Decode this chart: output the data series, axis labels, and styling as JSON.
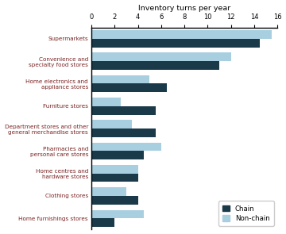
{
  "categories": [
    "Supermarkets",
    "Convenience and\nspecialty food stores",
    "Home electronics and\nappliance stores",
    "Furniture stores",
    "Department stores and other\ngeneral merchandise stores",
    "Pharmacies and\npersonal care stores",
    "Home centres and\nhardware stores",
    "Clothing stores",
    "Home furnishings stores"
  ],
  "chain": [
    14.5,
    11.0,
    6.5,
    5.5,
    5.5,
    4.5,
    4.0,
    4.0,
    2.0
  ],
  "nonchain": [
    15.5,
    12.0,
    5.0,
    2.5,
    3.5,
    6.0,
    4.0,
    3.0,
    4.5
  ],
  "chain_color": "#1a3a4a",
  "nonchain_color": "#a8cfe0",
  "title": "Inventory turns per year",
  "xlim": [
    0,
    16
  ],
  "xticks": [
    0,
    2,
    4,
    6,
    8,
    10,
    12,
    14,
    16
  ],
  "label_color": "#7b2222",
  "bar_height": 0.38,
  "legend_chain": "Chain",
  "legend_nonchain": "Non-chain",
  "figsize": [
    3.6,
    2.95
  ],
  "dpi": 100
}
